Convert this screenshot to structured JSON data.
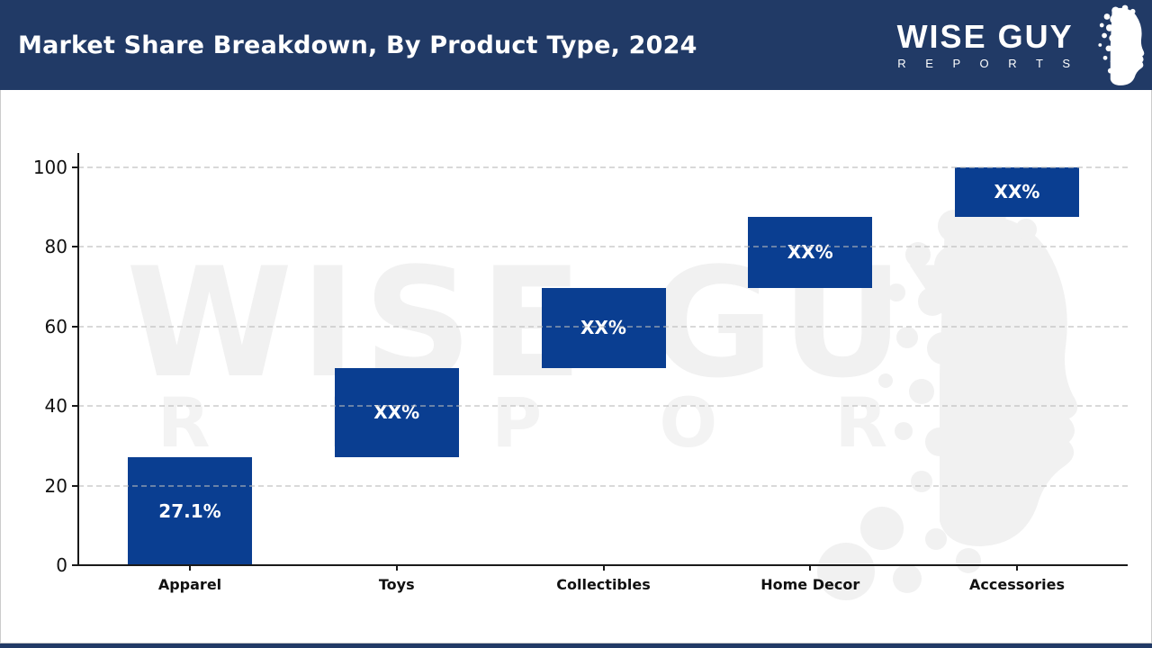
{
  "header": {
    "title": "Market Share Breakdown, By Product Type, 2024",
    "bg_color": "#213a66",
    "logo": {
      "line1": "WISE GUY",
      "line2": "R E P O R T S"
    }
  },
  "watermark": {
    "line1": "WISE GUY",
    "line2": "R E P O R T S"
  },
  "chart_data": {
    "type": "bar",
    "subtype": "waterfall-floating-bars",
    "title": "Market Share Breakdown, By Product Type, 2024",
    "xlabel": "",
    "ylabel": "",
    "ylim": [
      0,
      100
    ],
    "yticks": [
      0,
      20,
      40,
      60,
      80,
      100
    ],
    "grid": true,
    "legend": "none",
    "bar_color": "#0a3e91",
    "categories": [
      "Apparel",
      "Toys",
      "Collectibles",
      "Home Decor",
      "Accessories"
    ],
    "segments": [
      {
        "category": "Apparel",
        "start": 0,
        "end": 27.1,
        "label": "27.1%"
      },
      {
        "category": "Toys",
        "start": 27.1,
        "end": 49.6,
        "label": "XX%"
      },
      {
        "category": "Collectibles",
        "start": 49.6,
        "end": 69.7,
        "label": "XX%"
      },
      {
        "category": "Home Decor",
        "start": 69.7,
        "end": 87.6,
        "label": "XX%"
      },
      {
        "category": "Accessories",
        "start": 87.6,
        "end": 100,
        "label": "XX%"
      }
    ]
  }
}
